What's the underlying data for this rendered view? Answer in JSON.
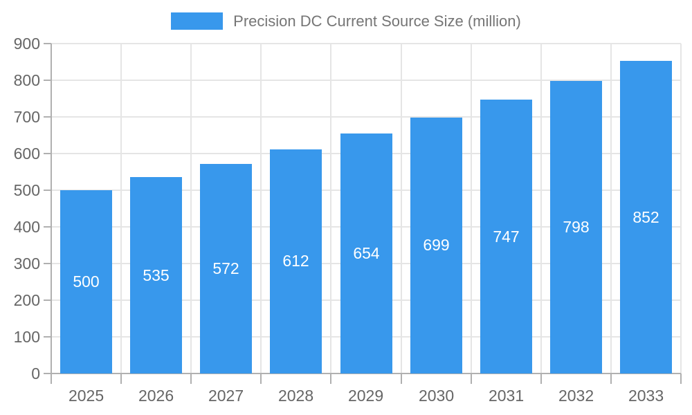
{
  "chart_data": {
    "type": "bar",
    "title": "Precision DC Current Source Size (million)",
    "legend_label": "Precision DC Current Source Size (million)",
    "legend_position": "top",
    "categories": [
      "2025",
      "2026",
      "2027",
      "2028",
      "2029",
      "2030",
      "2031",
      "2032",
      "2033"
    ],
    "values": [
      500,
      535,
      572,
      612,
      654,
      699,
      747,
      798,
      852
    ],
    "xlabel": "",
    "ylabel": "",
    "ylim": [
      0,
      900
    ],
    "ytick_step": 100,
    "grid": true,
    "bar_color": "#3898EC",
    "value_label_color": "#ffffff",
    "axis_label_color": "#666666",
    "legend_text_color": "#757575",
    "gridline_color": "#e5e5e5",
    "axis_line_color": "#b0b0b0"
  }
}
